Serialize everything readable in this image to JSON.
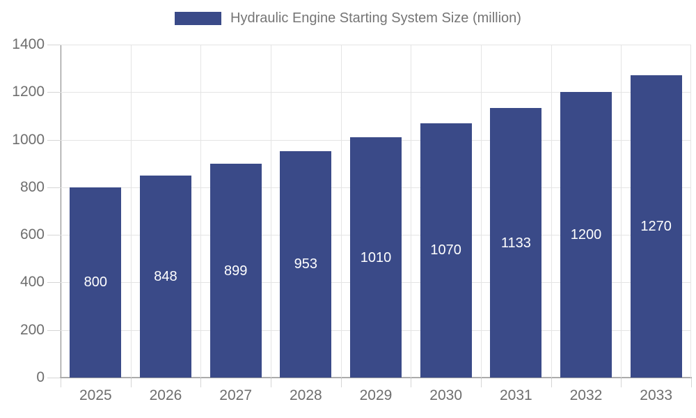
{
  "colors": {
    "bar": "#3A4A88",
    "grid_line": "#E4E4E4",
    "axis_line_y": "#7F7F7F",
    "axis_line_x": "#ABABAB",
    "tick_mark": "#D5D5D5",
    "tick_label": "#6E6E6E",
    "legend_text": "#757575",
    "bar_value_text": "#FFFFFF",
    "background": "#FFFFFF"
  },
  "chart_data": {
    "type": "bar",
    "title": "",
    "legend_entries": [
      "Hydraulic Engine Starting System Size (million)"
    ],
    "categories": [
      "2025",
      "2026",
      "2027",
      "2028",
      "2029",
      "2030",
      "2031",
      "2032",
      "2033"
    ],
    "values": [
      800,
      848,
      899,
      953,
      1010,
      1070,
      1133,
      1200,
      1270
    ],
    "xlabel": "",
    "ylabel": "",
    "ylim": [
      0,
      1400
    ],
    "yticks": [
      0,
      200,
      400,
      600,
      800,
      1000,
      1200,
      1400
    ],
    "grid": true,
    "legend_position": "top"
  }
}
